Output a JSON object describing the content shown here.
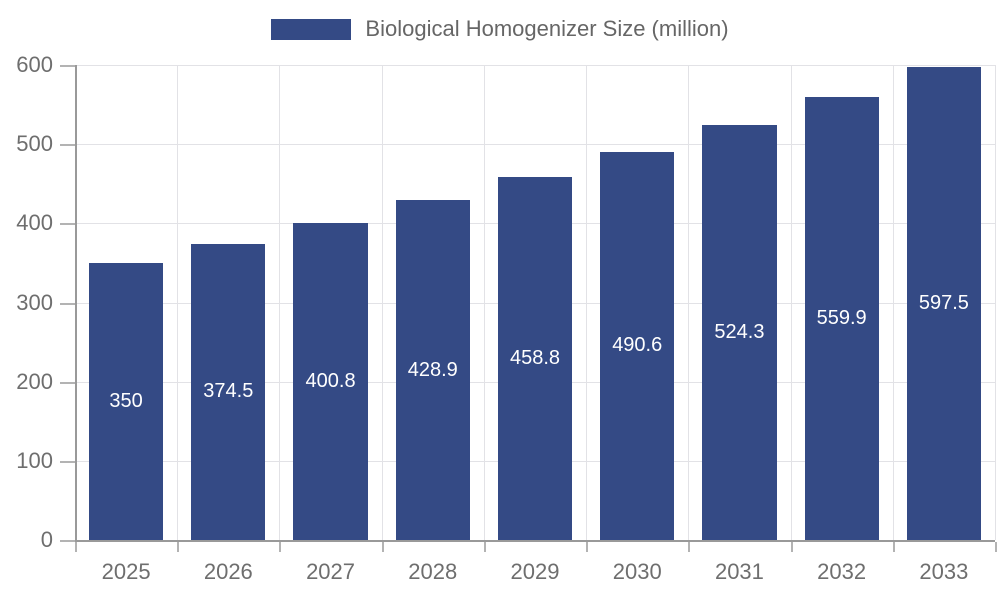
{
  "legend": {
    "label": "Biological Homogenizer Size (million)"
  },
  "chart_data": {
    "type": "bar",
    "title": "Biological Homogenizer Size (million)",
    "categories": [
      "2025",
      "2026",
      "2027",
      "2028",
      "2029",
      "2030",
      "2031",
      "2032",
      "2033"
    ],
    "values": [
      350,
      374.5,
      400.8,
      428.9,
      458.8,
      490.6,
      524.3,
      559.9,
      597.5
    ],
    "xlabel": "",
    "ylabel": "",
    "ylim": [
      0,
      600
    ],
    "yticks": [
      0,
      100,
      200,
      300,
      400,
      500,
      600
    ],
    "grid": true,
    "legend_position": "top-center",
    "bar_color": "#344a85",
    "value_label_color": "#ffffff"
  },
  "colors": {
    "bar": "#344a85",
    "grid": "#e2e2e6",
    "axis": "#999999",
    "tick_text": "#6e6e6e",
    "legend_text": "#666666",
    "value_text": "#ffffff"
  }
}
